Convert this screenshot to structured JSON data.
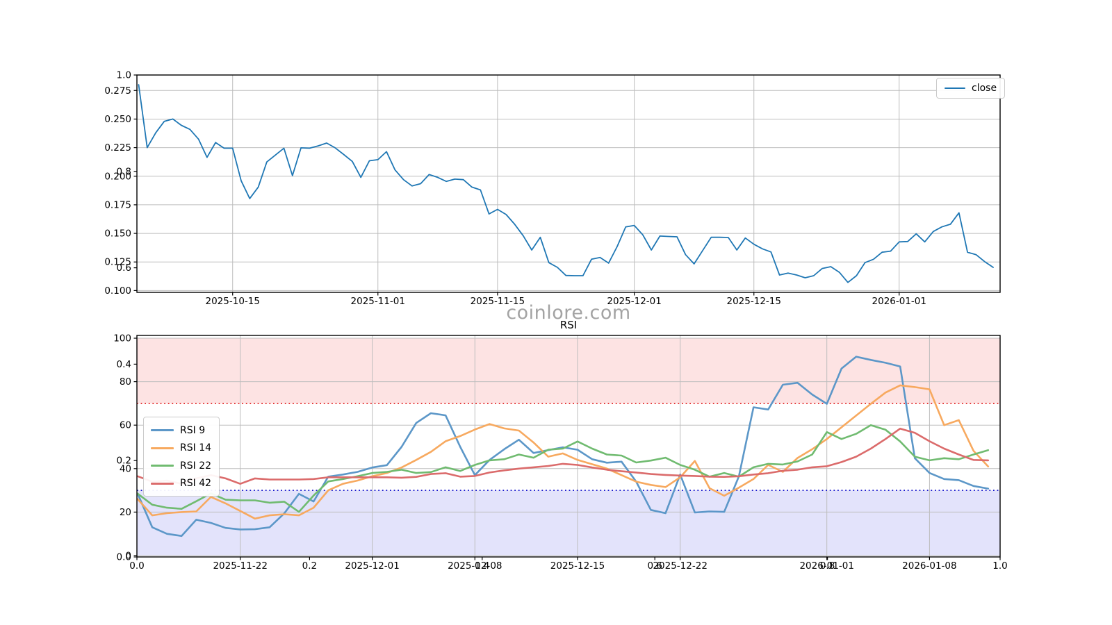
{
  "watermark": {
    "text": "coinlore.com"
  },
  "colors": {
    "background": "#ffffff",
    "grid": "#bdbdbd",
    "spine": "#000000",
    "tick_label": "#000000",
    "overbought_band": "#fde3e3",
    "oversold_band": "#e3e3fb",
    "overbought_line": "#e01919",
    "oversold_line": "#1414cc"
  },
  "overlay_axis": {
    "xtick_labels": [
      "0.0",
      "0.2",
      "0.4",
      "0.6",
      "0.8",
      "1.0"
    ],
    "ytick_labels": [
      "1.0",
      "0.8",
      "0.6",
      "0.4",
      "0.2",
      "0.0"
    ]
  },
  "chart_data": [
    {
      "type": "line",
      "name": "close-price",
      "title": "",
      "xlabel": "",
      "ylabel": "",
      "start_date": "2025-10-04",
      "freq": "daily",
      "grid": true,
      "legend_position": "upper right",
      "xtick_labels": [
        "2025-10-15",
        "2025-11-01",
        "2025-11-15",
        "2025-12-01",
        "2025-12-15",
        "2026-01-01"
      ],
      "yticks": [
        0.1,
        0.125,
        0.15,
        0.175,
        0.2,
        0.225,
        0.25,
        0.275
      ],
      "ylim": [
        0.098,
        0.288
      ],
      "series": [
        {
          "name": "close",
          "color": "#1f77b4",
          "width": 1.8,
          "values": [
            0.28,
            0.225,
            0.238,
            0.248,
            0.25,
            0.2445,
            0.241,
            0.2325,
            0.2165,
            0.2295,
            0.2245,
            0.2245,
            0.196,
            0.1805,
            0.1905,
            0.2125,
            0.2185,
            0.2245,
            0.2005,
            0.2248,
            0.2245,
            0.2265,
            0.229,
            0.2248,
            0.219,
            0.213,
            0.199,
            0.2135,
            0.2145,
            0.2215,
            0.2055,
            0.197,
            0.1915,
            0.1935,
            0.2015,
            0.199,
            0.1955,
            0.1975,
            0.197,
            0.1905,
            0.188,
            0.167,
            0.171,
            0.1665,
            0.158,
            0.148,
            0.1355,
            0.1466,
            0.1244,
            0.1203,
            0.1132,
            0.113,
            0.113,
            0.1274,
            0.129,
            0.124,
            0.1385,
            0.1557,
            0.157,
            0.1487,
            0.1355,
            0.1477,
            0.1473,
            0.147,
            0.1314,
            0.1233,
            0.135,
            0.1466,
            0.1466,
            0.1464,
            0.1355,
            0.146,
            0.1405,
            0.1365,
            0.1338,
            0.1136,
            0.1153,
            0.1136,
            0.1112,
            0.113,
            0.1193,
            0.1209,
            0.116,
            0.1071,
            0.113,
            0.1244,
            0.1274,
            0.1335,
            0.1345,
            0.1426,
            0.1429,
            0.1496,
            0.1426,
            0.1517,
            0.1557,
            0.158,
            0.168,
            0.1335,
            0.1314,
            0.1253,
            0.1203
          ]
        }
      ]
    },
    {
      "type": "line",
      "name": "rsi",
      "title": "RSI",
      "xlabel": "",
      "ylabel": "",
      "start_date": "2025-11-15",
      "freq": "daily",
      "grid": true,
      "legend_position": "center left",
      "xtick_labels": [
        "2025-11-22",
        "2025-12-01",
        "2025-12-08",
        "2025-12-15",
        "2025-12-22",
        "2026-01-01",
        "2026-01-08"
      ],
      "yticks": [
        0,
        20,
        40,
        60,
        80,
        100
      ],
      "ylim": [
        0,
        100
      ],
      "hlines": [
        {
          "y": 70,
          "style": "dotted",
          "color": "#e01919"
        },
        {
          "y": 30,
          "style": "dotted",
          "color": "#1414cc"
        }
      ],
      "bands": [
        {
          "from": 70,
          "to": 100,
          "color": "#fde3e3",
          "meaning": "overbought"
        },
        {
          "from": 0,
          "to": 30,
          "color": "#e3e3fb",
          "meaning": "oversold"
        }
      ],
      "series": [
        {
          "name": "RSI 9",
          "color": "#5c97c8",
          "width": 2.6,
          "values": [
            28.5,
            13,
            10,
            9,
            16.5,
            15,
            12.7,
            12,
            12.1,
            13,
            19.4,
            28.4,
            24.9,
            36.3,
            37.3,
            38.5,
            40.5,
            41.6,
            50,
            61,
            65.5,
            64.5,
            50,
            37,
            44,
            48.9,
            53.3,
            47.2,
            48.5,
            49.8,
            48.7,
            44.3,
            42.7,
            43.2,
            34,
            21,
            19.5,
            37.3,
            19.8,
            20.3,
            20.1,
            36.4,
            68.2,
            67.2,
            78.6,
            79.5,
            74.1,
            69.8,
            86,
            91.5,
            90,
            88.7,
            87,
            44.8,
            38,
            35.2,
            34.7,
            32,
            30.8
          ]
        },
        {
          "name": "RSI 14",
          "color": "#f7a95f",
          "width": 2.6,
          "values": [
            26,
            18.5,
            19.5,
            20,
            20.3,
            27,
            24,
            20.5,
            17,
            18.5,
            19,
            18.5,
            22,
            30,
            33,
            34.5,
            36.5,
            38,
            40.5,
            44,
            47.7,
            52.6,
            55,
            58,
            60.5,
            58.5,
            57.5,
            52,
            45.5,
            47,
            44,
            42,
            40,
            37,
            34,
            32.5,
            31.5,
            36,
            43.5,
            31,
            27.5,
            31.2,
            35.2,
            41.7,
            38.5,
            44.9,
            48.9,
            53.6,
            59,
            64.4,
            69.8,
            75,
            78.3,
            77.5,
            76.5,
            60,
            62.3,
            48.2,
            41
          ]
        },
        {
          "name": "RSI 22",
          "color": "#70bb70",
          "width": 2.6,
          "values": [
            28.5,
            23.4,
            22,
            21.5,
            25,
            28.6,
            25.7,
            25.4,
            25.4,
            24.3,
            24.8,
            20.1,
            27.6,
            34.1,
            35.2,
            36.5,
            38,
            38.5,
            39.5,
            38,
            38.4,
            40.6,
            38.9,
            41.7,
            43.8,
            44.3,
            46.5,
            45,
            48.7,
            49.2,
            52.5,
            49.2,
            46.5,
            46,
            42.8,
            43.7,
            45,
            41.7,
            39.5,
            36.3,
            38,
            36.3,
            40.6,
            42.2,
            41.9,
            43.3,
            46.5,
            56.8,
            53.6,
            56,
            60,
            57.9,
            52.5,
            45.5,
            43.8,
            44.8,
            44.3,
            46.5,
            48.5
          ]
        },
        {
          "name": "RSI 42",
          "color": "#db6b6b",
          "width": 2.6,
          "values": [
            36.5,
            34,
            34.5,
            33,
            35.5,
            37,
            35.5,
            33,
            35.5,
            35,
            35,
            35,
            35.2,
            36,
            36,
            36,
            36,
            36,
            35.8,
            36.2,
            37.5,
            37.9,
            36.3,
            36.6,
            38.2,
            39.2,
            40,
            40.6,
            41.2,
            42.2,
            41.7,
            40.5,
            39.5,
            38.8,
            38.2,
            37.5,
            37.1,
            36.8,
            36.6,
            36.3,
            36.2,
            36.5,
            37.3,
            37.9,
            39,
            39.5,
            40.6,
            41.1,
            43,
            45.5,
            49.2,
            53.6,
            58.4,
            56.5,
            52.6,
            49.2,
            46.5,
            44,
            43.8
          ]
        }
      ]
    }
  ]
}
